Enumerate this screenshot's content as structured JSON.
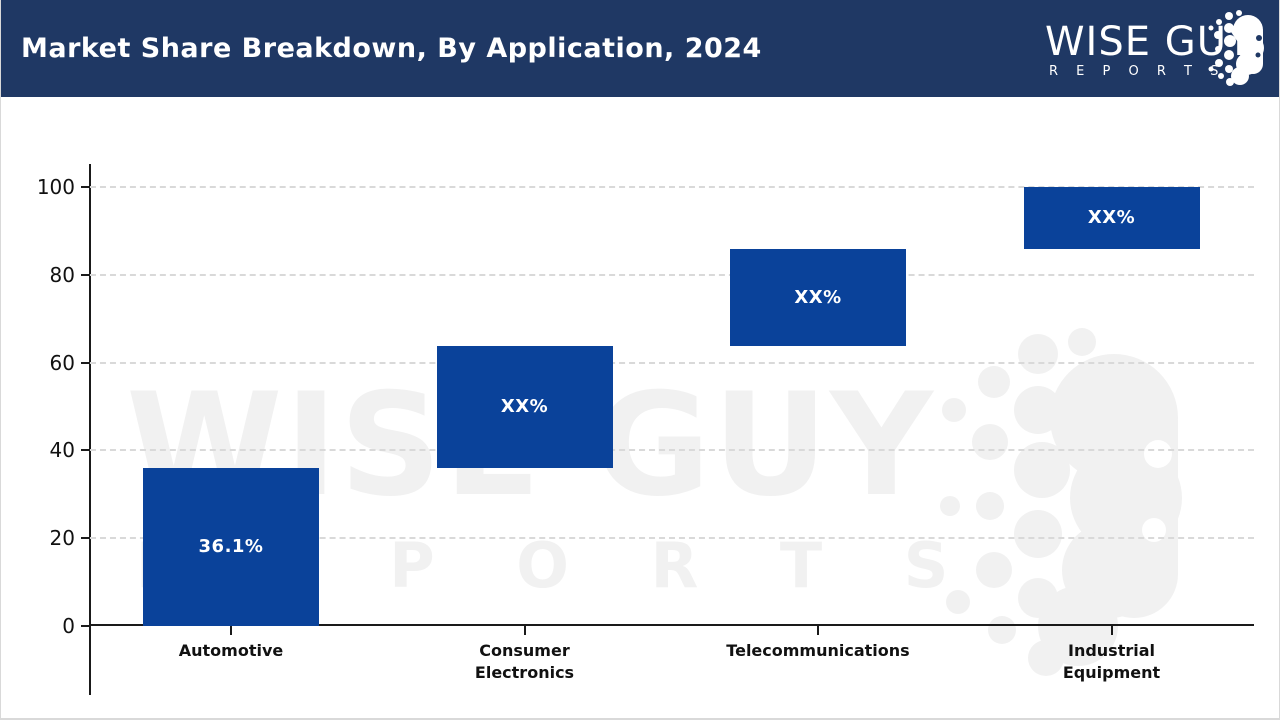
{
  "header": {
    "title": "Market Share Breakdown, By Application, 2024",
    "bg_color": "#1f3864",
    "logo": {
      "line1": "WISE GUY",
      "line2": "R E P O R T S"
    }
  },
  "watermark": {
    "line1": "WISE GUY",
    "line2": "R E P O R T S"
  },
  "chart_data": {
    "type": "bar",
    "variant": "floating-waterfall",
    "title": "Market Share Breakdown, By Application, 2024",
    "categories": [
      "Automotive",
      "Consumer\nElectronics",
      "Telecommunications",
      "Industrial\nEquipment"
    ],
    "segments": [
      {
        "category": "Automotive",
        "start": 0,
        "end": 36.1,
        "label": "36.1%"
      },
      {
        "category": "Consumer Electronics",
        "start": 36.1,
        "end": 63.7,
        "label": "XX%"
      },
      {
        "category": "Telecommunications",
        "start": 63.7,
        "end": 85.9,
        "label": "XX%"
      },
      {
        "category": "Industrial Equipment",
        "start": 85.9,
        "end": 100,
        "label": "XX%"
      }
    ],
    "ylim": [
      0,
      100
    ],
    "yticks": [
      0,
      20,
      40,
      60,
      80,
      100
    ],
    "bar_color": "#0a429a",
    "bar_label_color": "#ffffff",
    "grid": "horizontal-dashed",
    "legend": "none"
  }
}
